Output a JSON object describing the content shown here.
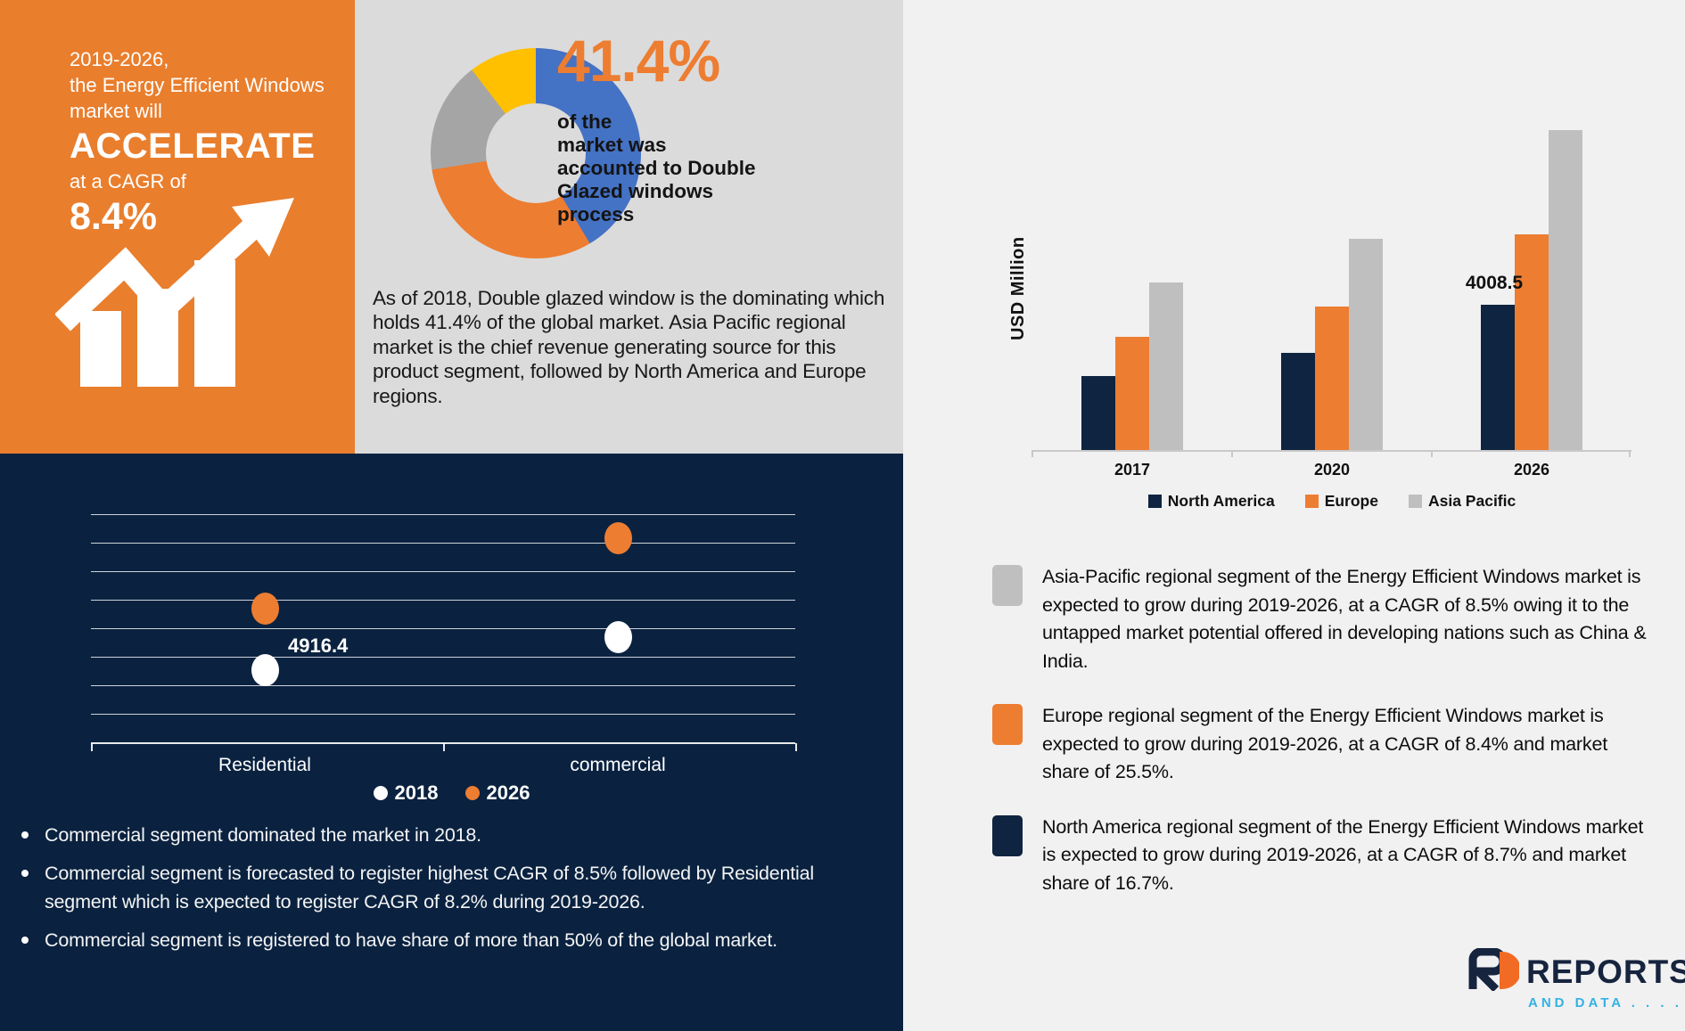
{
  "colors": {
    "orange": "#ED7D31",
    "orange_box": "#E97E2D",
    "navy_panel": "#0A2240",
    "navy_bar": "#0E2440",
    "blue": "#4472C4",
    "donut_gray": "#A5A5A5",
    "yellow": "#FFC000",
    "legend_gray": "#BFBFBF",
    "gray_box_bg": "#DBDBDB",
    "right_bg": "#F1F1F2",
    "logo_blue": "#33B1E4",
    "logo_navy": "#16243E",
    "white": "#FFFFFF"
  },
  "accelerate_box": {
    "line1": "2019-2026,",
    "line2": "the Energy Efficient Windows",
    "line3": "market will",
    "accent": "ACCELERATE",
    "cagr_prefix": "at a CAGR of",
    "cagr_value": "8.4%"
  },
  "donut_section": {
    "headline_value": "41.4%",
    "headline_lines": [
      "of the",
      "market was",
      "accounted to  Double",
      "Glazed windows",
      "process"
    ],
    "paragraph": "As of 2018,  Double glazed window is the dominating which holds 41.4% of the global market. Asia Pacific regional market is the chief revenue generating source for this product segment, followed by North America and Europe regions."
  },
  "segment_bullets": [
    "Commercial segment dominated the market in 2018.",
    "Commercial segment is forecasted to register highest CAGR of 8.5% followed by Residential segment which is expected to register CAGR of 8.2% during 2019-2026.",
    "Commercial segment is registered to have share of more than 50% of the global market."
  ],
  "region_bullets": [
    {
      "color": "#BFBFBF",
      "text": "Asia-Pacific regional segment of the Energy Efficient Windows market is expected to grow during 2019-2026, at a CAGR of 8.5% owing it to the untapped market potential offered in developing nations such as China & India."
    },
    {
      "color": "#ED7D31",
      "text": "Europe regional segment of the Energy Efficient Windows market is expected to grow during 2019-2026, at a CAGR of 8.4% and market share of 25.5%."
    },
    {
      "color": "#0E2440",
      "text": "North America regional segment of the Energy Efficient Windows market is expected to grow during 2019-2026, at a CAGR of 8.7% and market share of 16.7%."
    }
  ],
  "logo": {
    "name": "REPORTS",
    "tagline": "AND DATA . . . ."
  },
  "chart_data": [
    {
      "type": "pie",
      "subtype": "donut",
      "labels": [
        "Double Glazed windows",
        "",
        "",
        ""
      ],
      "values": [
        41.4,
        31.1,
        17.1,
        10.4
      ],
      "colors": [
        "#4472C4",
        "#ED7D31",
        "#A5A5A5",
        "#FFC000"
      ],
      "note": "only the 41.4% Double Glazed slice is labeled on the graphic; other slice values estimated from arc angles"
    },
    {
      "type": "scatter",
      "subtype": "dot-plot",
      "categories": [
        "Residential",
        "commercial"
      ],
      "series": [
        {
          "name": "2018",
          "color": "#FFFFFF",
          "values": [
            4916.4,
            7160
          ]
        },
        {
          "name": "2026",
          "color": "#ED7D31",
          "values": [
            9100,
            13900
          ]
        }
      ],
      "data_label": {
        "series": "2018",
        "category": "Residential",
        "text": "4916.4"
      },
      "ylim": [
        0,
        15500
      ],
      "gridlines": 8,
      "grid": true,
      "legend_position": "bottom",
      "note": "only the 4916.4 point is labeled; other values estimated from gridline positions"
    },
    {
      "type": "bar",
      "categories": [
        "2017",
        "2020",
        "2026"
      ],
      "series": [
        {
          "name": "North America",
          "color": "#0E2440",
          "values": [
            2050,
            2680,
            4008.5
          ]
        },
        {
          "name": "Europe",
          "color": "#ED7D31",
          "values": [
            3140,
            3960,
            5960
          ]
        },
        {
          "name": "Asia Pacific",
          "color": "#BFBFBF",
          "values": [
            4640,
            5840,
            8840
          ]
        }
      ],
      "ylabel": "USD Million",
      "ylim": [
        0,
        9000
      ],
      "grid": false,
      "legend_position": "bottom",
      "data_label": {
        "series": "North America",
        "category": "2026",
        "text": "4008.5"
      },
      "note": "only the 4008.5 bar is labeled; other values estimated from bar heights"
    }
  ]
}
